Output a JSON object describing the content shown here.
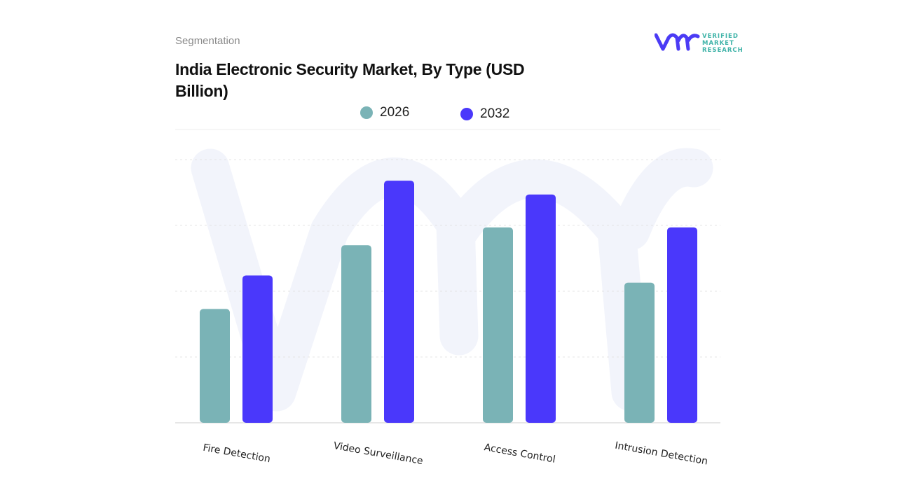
{
  "header": {
    "section_label": "Segmentation",
    "title": "India Electronic Security Market, By Type (USD Billion)"
  },
  "logo": {
    "text_lines": [
      "VERIFIED",
      "MARKET",
      "RESEARCH"
    ],
    "mark": "vmr",
    "colors": {
      "mark": "#4b3bf5",
      "text": "#3fb3a8"
    }
  },
  "chart_data": {
    "type": "bar",
    "title": "India Electronic Security Market, By Type (USD Billion)",
    "categories": [
      "Fire Detection",
      "Video Surveillance",
      "Access Control",
      "Intrusion Detection"
    ],
    "series": [
      {
        "name": "2026",
        "color": "#7ab3b6",
        "values": [
          1.73,
          2.7,
          2.97,
          2.13
        ]
      },
      {
        "name": "2032",
        "color": "#4a38fb",
        "values": [
          2.24,
          3.68,
          3.47,
          2.97
        ]
      }
    ],
    "ylim": [
      0,
      4
    ],
    "y_tick_labels_shown": false,
    "grid": true,
    "legend_position": "top-center",
    "xlabel": "",
    "ylabel": ""
  }
}
